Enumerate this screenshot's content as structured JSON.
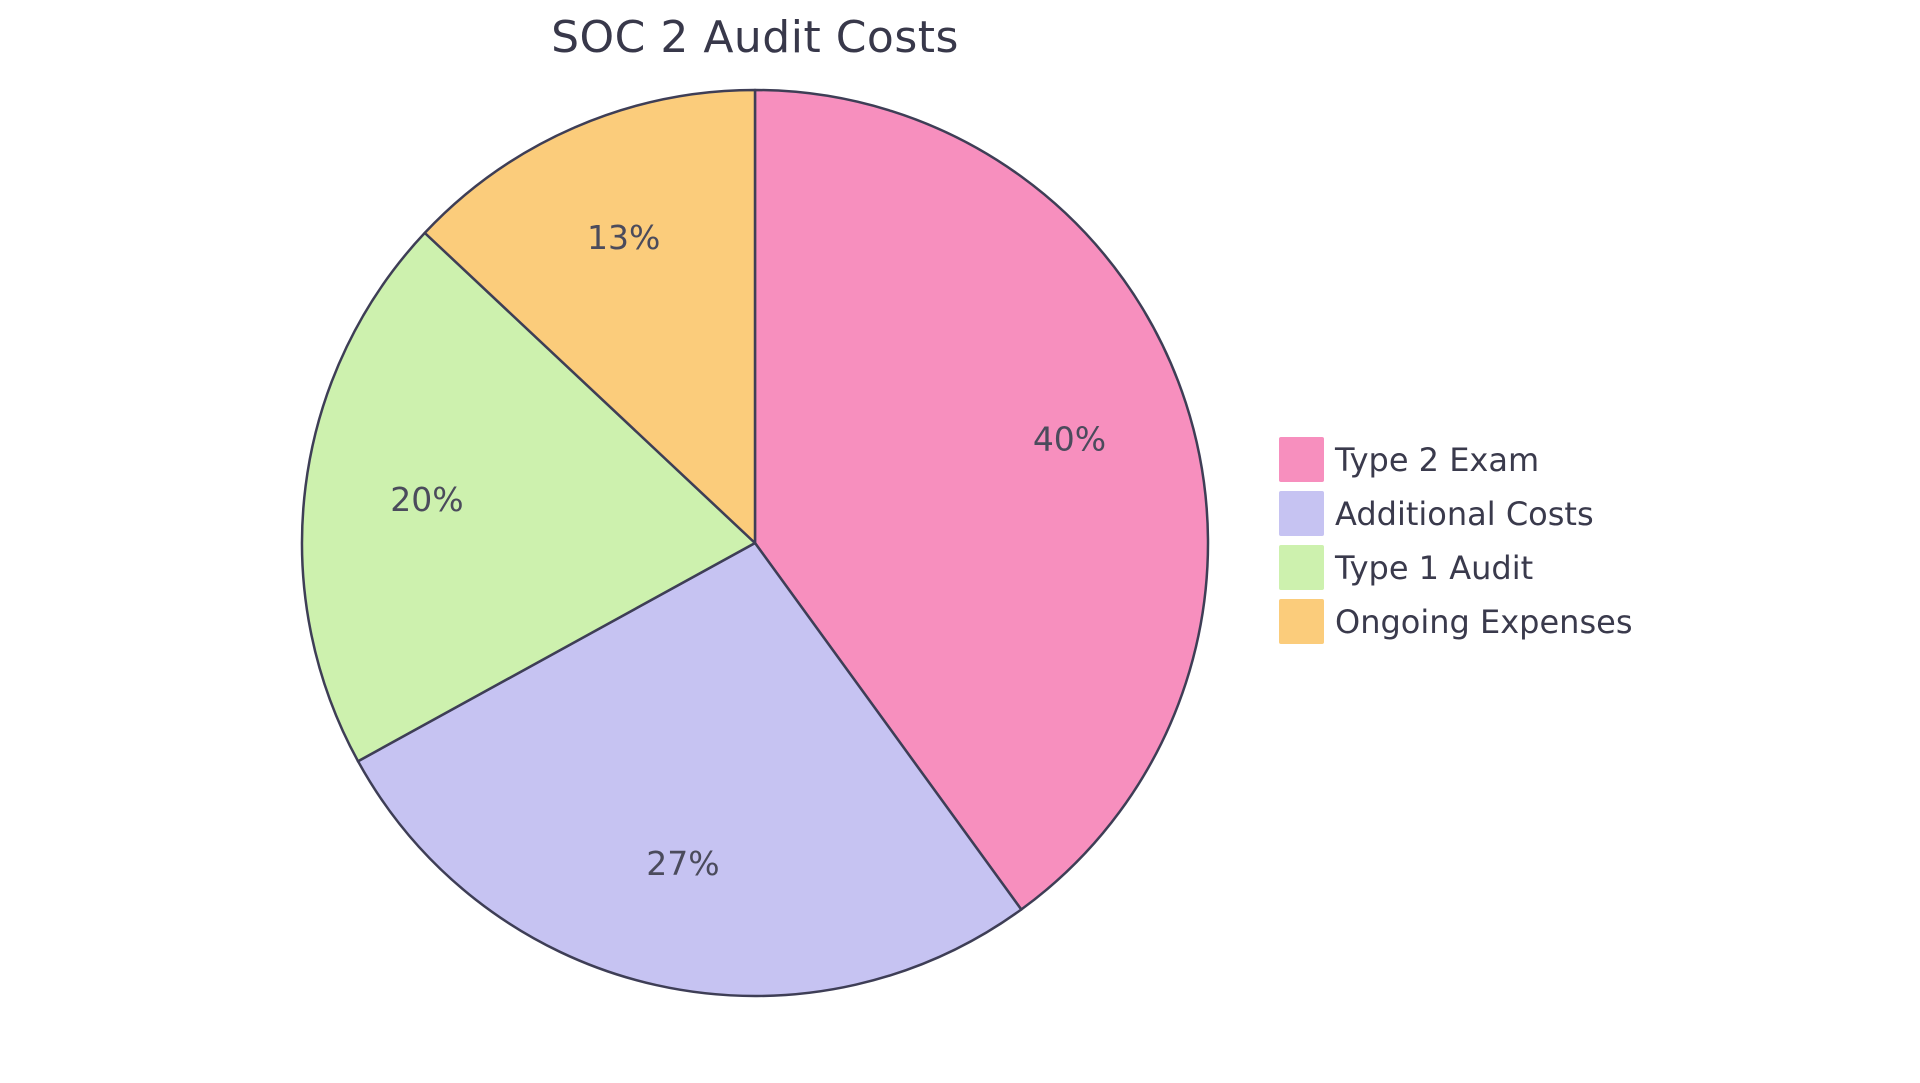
{
  "chart_data": {
    "type": "pie",
    "title": "SOC 2 Audit Costs",
    "labels": [
      "Type 2 Exam",
      "Additional Costs",
      "Type 1 Audit",
      "Ongoing Expenses"
    ],
    "values": [
      40,
      27,
      20,
      13
    ],
    "percent_labels": [
      "40%",
      "27%",
      "20%",
      "13%"
    ],
    "colors": [
      "#F78FBE",
      "#C6C3F2",
      "#CDF1AE",
      "#FBCC7B"
    ],
    "stroke_color": "#3E3E56",
    "label_color": "#4B4B5C",
    "title_color": "#38384A",
    "legend_text_color": "#3A3A4C",
    "background": "#FFFFFF",
    "start_angle": "top",
    "direction": "clockwise",
    "legend_position": "right",
    "grid": false
  }
}
